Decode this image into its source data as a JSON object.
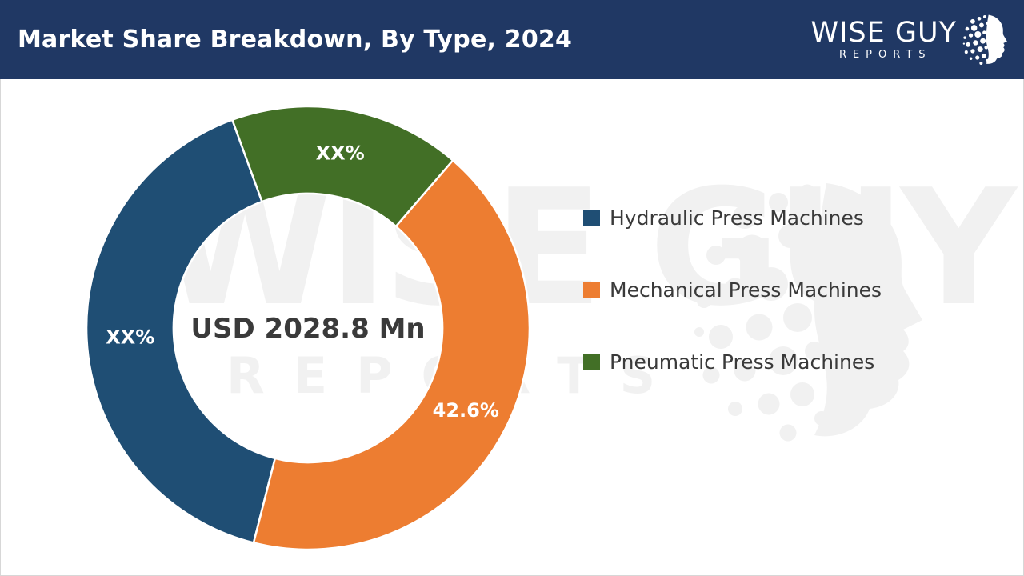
{
  "header": {
    "title": "Market Share Breakdown, By Type, 2024",
    "logo": {
      "wordmark": "WISE GUY",
      "subtext": "REPORTS"
    }
  },
  "watermark": {
    "line1": "WISE GUY",
    "line2": "REPORTS"
  },
  "chart_data": {
    "type": "pie",
    "subtype": "donut",
    "title": "Market Share Breakdown, By Type, 2024",
    "center_label": "USD 2028.8 Mn",
    "legend_position": "right",
    "start_angle_deg": 110,
    "direction": "clockwise",
    "segments": [
      {
        "label": "Pneumatic Press Machines",
        "display_value": "XX%",
        "pct": 16.9,
        "color": "#426F26"
      },
      {
        "label": "Mechanical Press Machines",
        "display_value": "42.6%",
        "pct": 42.6,
        "color": "#ED7D31"
      },
      {
        "label": "Hydraulic Press Machines",
        "display_value": "XX%",
        "pct": 40.5,
        "color": "#1F4E74"
      }
    ]
  },
  "legend": {
    "items": [
      {
        "label": "Hydraulic Press Machines",
        "color": "#1F4E74"
      },
      {
        "label": "Mechanical Press Machines",
        "color": "#ED7D31"
      },
      {
        "label": "Pneumatic Press Machines",
        "color": "#426F26"
      }
    ]
  },
  "colors": {
    "header_bg": "#203864",
    "text_dark": "#3A3A3A",
    "watermark": "#F1F1F1",
    "border": "#D7D7D7"
  }
}
